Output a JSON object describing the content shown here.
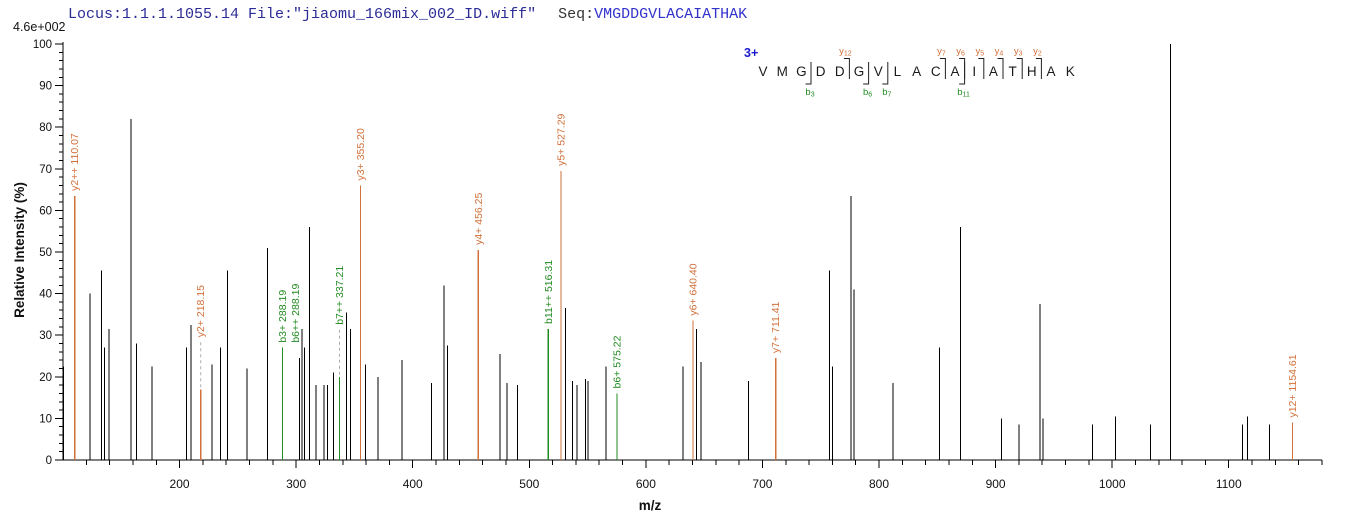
{
  "header": {
    "locus_file": "Locus:1.1.1.1055.14 File:\"jiaomu_166mix_002_ID.wiff\"",
    "seq_label": "Seq:",
    "seq_value": "VMGDDGVLACAIATHAK",
    "max_intensity": "4.6e+002"
  },
  "colors": {
    "y_ion": "#d2703a",
    "b_ion": "#228b22",
    "peak": "#000000",
    "axis": "#000000",
    "dashed_leader": "#aaaaaa",
    "locus_text": "#2b2b96",
    "sequence_text": "#3232cc",
    "charge_text": "#1a1acc"
  },
  "chart_data": {
    "type": "bar",
    "subtype": "ms2_stick_spectrum",
    "title": "Locus:1.1.1.1055.14 File:\"jiaomu_166mix_002_ID.wiff\"  Seq: VMGDDGVLACAIATHAK",
    "xlabel": "m/z",
    "ylabel": "Relative Intensity (%)",
    "base_peak_intensity": "4.6e+002",
    "xlim": [
      100,
      1180
    ],
    "ylim": [
      0,
      100
    ],
    "x_major_ticks": [
      200,
      300,
      400,
      500,
      600,
      700,
      800,
      900,
      1000,
      1100
    ],
    "x_minor_step": 20,
    "y_major_ticks": [
      0,
      10,
      20,
      30,
      40,
      50,
      60,
      70,
      80,
      90,
      100
    ],
    "y_minor_step": 2,
    "grid": false,
    "legend": "none",
    "annotated_peaks": [
      {
        "mz": 110.07,
        "intensity": 63.5,
        "series": "y",
        "labels": [
          "y2++ 110.07"
        ],
        "dashed": false
      },
      {
        "mz": 218.15,
        "intensity": 17,
        "series": "y",
        "labels": [
          "y2+ 218.15"
        ],
        "dashed": true
      },
      {
        "mz": 288.19,
        "intensity": 27,
        "series": "b",
        "labels": [
          "b3+ 288.19",
          "b6++ 288.19"
        ],
        "dashed": false
      },
      {
        "mz": 337.21,
        "intensity": 20,
        "series": "b",
        "labels": [
          "b7++ 337.21"
        ],
        "dashed": true
      },
      {
        "mz": 355.2,
        "intensity": 66,
        "series": "y",
        "labels": [
          "y3+ 355.20"
        ],
        "dashed": false
      },
      {
        "mz": 456.25,
        "intensity": 50.5,
        "series": "y",
        "labels": [
          "y4+ 456.25"
        ],
        "dashed": false
      },
      {
        "mz": 516.31,
        "intensity": 31.5,
        "series": "b",
        "labels": [
          "b11++ 516.31"
        ],
        "dashed": false
      },
      {
        "mz": 527.29,
        "intensity": 69.5,
        "series": "y",
        "labels": [
          "y5+ 527.29"
        ],
        "dashed": false
      },
      {
        "mz": 575.22,
        "intensity": 16,
        "series": "b",
        "labels": [
          "b6+ 575.22"
        ],
        "dashed": false
      },
      {
        "mz": 640.4,
        "intensity": 33.5,
        "series": "y",
        "labels": [
          "y6+ 640.40"
        ],
        "dashed": false
      },
      {
        "mz": 711.41,
        "intensity": 24.5,
        "series": "y",
        "labels": [
          "y7+ 711.41"
        ],
        "dashed": false
      },
      {
        "mz": 1154.61,
        "intensity": 9,
        "series": "y",
        "labels": [
          "y12+ 1154.61"
        ],
        "dashed": false
      }
    ],
    "peaks": [
      [
        100.5,
        22.5
      ],
      [
        123,
        40
      ],
      [
        133,
        45.5
      ],
      [
        135.5,
        27
      ],
      [
        139.5,
        31.5
      ],
      [
        158.5,
        82
      ],
      [
        163,
        28
      ],
      [
        176.5,
        22.5
      ],
      [
        206,
        27
      ],
      [
        210,
        32.5
      ],
      [
        228,
        23
      ],
      [
        235,
        27
      ],
      [
        241,
        45.5
      ],
      [
        258,
        22
      ],
      [
        275.5,
        51
      ],
      [
        303,
        24.5
      ],
      [
        305,
        31.5
      ],
      [
        307,
        27
      ],
      [
        311.5,
        56
      ],
      [
        317,
        18
      ],
      [
        324,
        18
      ],
      [
        327,
        18
      ],
      [
        332,
        21
      ],
      [
        343,
        35.5
      ],
      [
        346.5,
        31.5
      ],
      [
        359.5,
        23
      ],
      [
        370,
        20
      ],
      [
        391,
        24
      ],
      [
        416,
        18.5
      ],
      [
        427,
        42
      ],
      [
        430,
        27.5
      ],
      [
        475,
        25.5
      ],
      [
        481,
        18.5
      ],
      [
        490,
        18
      ],
      [
        531,
        36.5
      ],
      [
        537,
        19
      ],
      [
        541,
        18
      ],
      [
        548,
        19.5
      ],
      [
        550.5,
        19
      ],
      [
        566,
        22.5
      ],
      [
        632,
        22.5
      ],
      [
        643.5,
        31.5
      ],
      [
        647.5,
        23.5
      ],
      [
        688,
        19
      ],
      [
        757.5,
        45.5
      ],
      [
        760,
        22.5
      ],
      [
        776,
        63.5
      ],
      [
        778.5,
        41
      ],
      [
        812,
        18.5
      ],
      [
        852,
        27
      ],
      [
        870,
        56
      ],
      [
        905,
        10
      ],
      [
        920,
        8.5
      ],
      [
        938,
        37.5
      ],
      [
        940.5,
        10
      ],
      [
        983,
        8.5
      ],
      [
        1003,
        10.5
      ],
      [
        1033,
        8.5
      ],
      [
        1050,
        100
      ],
      [
        1112,
        8.5
      ],
      [
        1116,
        10.5
      ],
      [
        1135,
        8.5
      ]
    ]
  },
  "sequence_annotation": {
    "charge": "3+",
    "residues": [
      "V",
      "M",
      "G",
      "D",
      "D",
      "G",
      "V",
      "L",
      "A",
      "C",
      "A",
      "I",
      "A",
      "T",
      "H",
      "A",
      "K"
    ],
    "y_ions": [
      {
        "base": "y",
        "sub": "12",
        "after_residue": 5
      },
      {
        "base": "y",
        "sub": "7",
        "after_residue": 10
      },
      {
        "base": "y",
        "sub": "6",
        "after_residue": 11
      },
      {
        "base": "y",
        "sub": "5",
        "after_residue": 12
      },
      {
        "base": "y",
        "sub": "4",
        "after_residue": 13
      },
      {
        "base": "y",
        "sub": "3",
        "after_residue": 14
      },
      {
        "base": "y",
        "sub": "2",
        "after_residue": 15
      }
    ],
    "b_ions": [
      {
        "base": "b",
        "sub": "3",
        "after_residue": 3
      },
      {
        "base": "b",
        "sub": "6",
        "after_residue": 6
      },
      {
        "base": "b",
        "sub": "7",
        "after_residue": 7
      },
      {
        "base": "b",
        "sub": "11",
        "after_residue": 11
      }
    ]
  }
}
